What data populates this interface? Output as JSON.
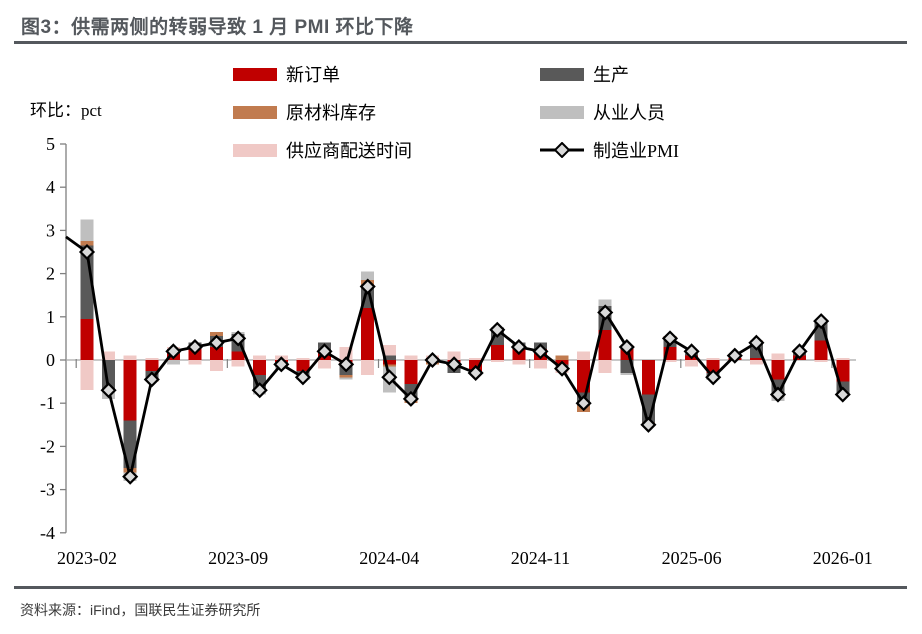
{
  "figure": {
    "title": "图3：供需两侧的转弱导致 1 月 PMI 环比下降"
  },
  "axis_unit_label": "环比：pct",
  "source_note": "资料来源：iFind，国联民生证券研究所",
  "colors": {
    "new_orders_red": "#C00000",
    "production_gray": "#595959",
    "raw_materials_brown": "#C17B4F",
    "employees_lightgray": "#BFBFBF",
    "supplier_delivery_pink": "#F0C9C6",
    "pmi_line": "#000000",
    "marker_fill": "#D9D9D9",
    "axis": "#808080",
    "zero_line": "#A6A6A6",
    "title_gray": "#54585d"
  },
  "legend": {
    "items": [
      {
        "label": "新订单",
        "kind": "bar",
        "color": "#C00000"
      },
      {
        "label": "原材料库存",
        "kind": "bar",
        "color": "#C17B4F"
      },
      {
        "label": "供应商配送时间",
        "kind": "bar",
        "color": "#F0C9C6"
      },
      {
        "label": "生产",
        "kind": "bar",
        "color": "#595959"
      },
      {
        "label": "从业人员",
        "kind": "bar",
        "color": "#BFBFBF"
      },
      {
        "label": "制造业PMI",
        "kind": "line",
        "color": "#000000"
      }
    ]
  },
  "chart_data": {
    "type": "combo-stacked-bar-line",
    "title": "图3：供需两侧的转弱导致 1 月 PMI 环比下降",
    "ylabel": "环比：pct",
    "ylim": [
      -4,
      5
    ],
    "yticks": [
      5,
      4,
      3,
      2,
      1,
      0,
      -1,
      -2,
      -3,
      -4
    ],
    "grid": false,
    "legend_position": "top",
    "x_axis_labels": [
      "2023-02",
      "2023-09",
      "2024-04",
      "2024-11",
      "2025-06",
      "2026-01"
    ],
    "categories": [
      "2023-02",
      "2023-03",
      "2023-04",
      "2023-05",
      "2023-06",
      "2023-07",
      "2023-08",
      "2023-09",
      "2023-10",
      "2023-11",
      "2023-12",
      "2024-01",
      "2024-02",
      "2024-03",
      "2024-04",
      "2024-05",
      "2024-06",
      "2024-07",
      "2024-08",
      "2024-09",
      "2024-10",
      "2024-11",
      "2024-12",
      "2025-01",
      "2025-02",
      "2025-03",
      "2025-04",
      "2025-05",
      "2025-06",
      "2025-07",
      "2025-08",
      "2025-09",
      "2025-10",
      "2025-11",
      "2025-12",
      "2026-01"
    ],
    "bar_series": [
      {
        "name": "新订单",
        "color": "#C00000",
        "values": [
          0.95,
          0,
          -1.4,
          -0.25,
          0.15,
          0.3,
          0.3,
          0.2,
          -0.35,
          -0.05,
          -0.25,
          0.15,
          -0.1,
          1.2,
          -0.1,
          -0.55,
          0.05,
          -0.15,
          -0.3,
          0.35,
          0.3,
          0.25,
          -0.1,
          -0.75,
          0.7,
          0.3,
          -0.8,
          0.3,
          0.1,
          -0.3,
          0.05,
          0.05,
          -0.45,
          0.1,
          0.45,
          -0.5
        ]
      },
      {
        "name": "生产",
        "color": "#595959",
        "values": [
          1.7,
          -0.7,
          -1.1,
          -0.2,
          0.1,
          0.1,
          0.25,
          0.4,
          -0.35,
          -0.05,
          -0.2,
          0.25,
          -0.25,
          0.55,
          0.1,
          -0.35,
          0,
          -0.15,
          0,
          0.4,
          0.1,
          0.15,
          -0.05,
          -0.3,
          0.55,
          -0.3,
          -0.65,
          0.2,
          0.05,
          -0.15,
          0,
          0.35,
          -0.35,
          0.05,
          0.45,
          -0.3
        ]
      },
      {
        "name": "原材料库存",
        "color": "#C17B4F",
        "values": [
          0.1,
          0,
          -0.1,
          -0.05,
          0,
          0,
          0.1,
          0,
          0,
          0,
          0,
          0,
          -0.05,
          0.1,
          -0.05,
          -0.1,
          -0.1,
          0,
          0,
          0,
          0,
          0,
          0.1,
          -0.15,
          0,
          0,
          -0.05,
          0.05,
          0,
          0,
          0,
          0.05,
          -0.05,
          0.05,
          0,
          0
        ]
      },
      {
        "name": "从业人员",
        "color": "#BFBFBF",
        "values": [
          0.5,
          -0.2,
          -0.2,
          0,
          -0.1,
          0,
          0,
          0.05,
          -0.1,
          -0.1,
          0,
          0,
          -0.05,
          0.2,
          -0.6,
          0,
          0,
          0,
          0,
          0,
          0,
          0,
          0,
          0,
          0.15,
          -0.05,
          0,
          0,
          0,
          0,
          0,
          0,
          -0.1,
          0,
          0,
          0
        ]
      },
      {
        "name": "供应商配送时间",
        "color": "#F0C9C6",
        "values": [
          -0.7,
          0.2,
          0.1,
          0.05,
          0.05,
          -0.1,
          -0.25,
          -0.15,
          0.1,
          0.1,
          0.05,
          -0.2,
          0.3,
          -0.35,
          0.25,
          0.1,
          0.05,
          0.2,
          0.05,
          -0.05,
          -0.1,
          -0.2,
          -0.15,
          0.2,
          -0.3,
          0.05,
          0,
          -0.05,
          -0.15,
          0.05,
          0.05,
          -0.1,
          0.15,
          0.05,
          -0.05,
          0.05
        ]
      }
    ],
    "line_series": {
      "name": "制造业PMI",
      "color": "#000000",
      "marker": "diamond",
      "marker_fill": "#D9D9D9",
      "lead_in_value": 2.85,
      "values": [
        2.5,
        -0.7,
        -2.7,
        -0.45,
        0.2,
        0.3,
        0.4,
        0.5,
        -0.7,
        -0.1,
        -0.4,
        0.2,
        -0.1,
        1.7,
        -0.4,
        -0.9,
        0,
        -0.1,
        -0.3,
        0.7,
        0.3,
        0.2,
        -0.2,
        -1.0,
        1.1,
        0.3,
        -1.5,
        0.5,
        0.2,
        -0.4,
        0.1,
        0.4,
        -0.8,
        0.2,
        0.9,
        -0.8
      ]
    }
  }
}
